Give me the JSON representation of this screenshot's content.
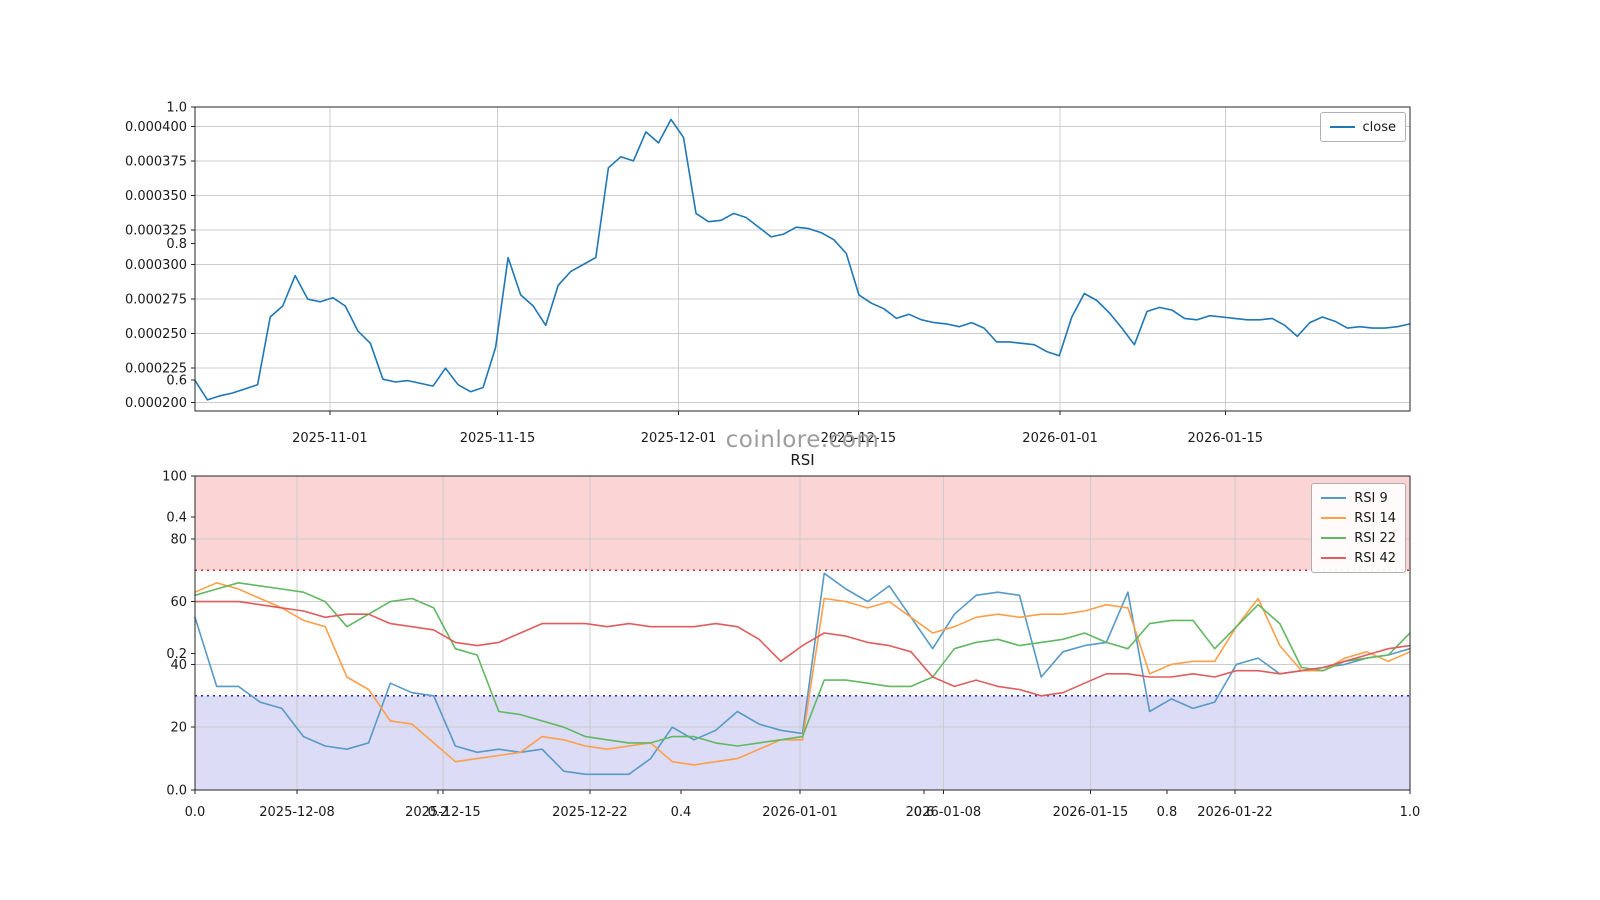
{
  "watermark": "coinlore.com",
  "overlay_axis": {
    "yticks": [
      "1.0",
      "0.8",
      "0.6",
      "0.4",
      "0.2",
      "0.0"
    ],
    "xticks": [
      "0.0",
      "0.2",
      "0.4",
      "0.6",
      "0.8",
      "1.0"
    ]
  },
  "chart_data": [
    {
      "type": "line",
      "title": "",
      "grid": true,
      "legend_position": "upper right",
      "ylim": [
        0.000194,
        0.000414
      ],
      "yticks": [
        {
          "v": 0.0002,
          "label": "0.000200"
        },
        {
          "v": 0.000225,
          "label": "0.000225"
        },
        {
          "v": 0.00025,
          "label": "0.000250"
        },
        {
          "v": 0.000275,
          "label": "0.000275"
        },
        {
          "v": 0.0003,
          "label": "0.000300"
        },
        {
          "v": 0.000325,
          "label": "0.000325"
        },
        {
          "v": 0.00035,
          "label": "0.000350"
        },
        {
          "v": 0.000375,
          "label": "0.000375"
        },
        {
          "v": 0.0004,
          "label": "0.000400"
        }
      ],
      "xticks": [
        {
          "f": 0.111,
          "label": "2025-11-01"
        },
        {
          "f": 0.249,
          "label": "2025-11-15"
        },
        {
          "f": 0.398,
          "label": "2025-12-01"
        },
        {
          "f": 0.546,
          "label": "2025-12-15"
        },
        {
          "f": 0.712,
          "label": "2026-01-01"
        },
        {
          "f": 0.848,
          "label": "2026-01-15"
        }
      ],
      "series": [
        {
          "name": "close",
          "color": "#1f77b4",
          "values": [
            0.000216,
            0.000202,
            0.000205,
            0.000207,
            0.00021,
            0.000213,
            0.000262,
            0.00027,
            0.000292,
            0.000275,
            0.000273,
            0.000276,
            0.00027,
            0.000252,
            0.000243,
            0.000217,
            0.000215,
            0.000216,
            0.000214,
            0.000212,
            0.000225,
            0.000213,
            0.000208,
            0.000211,
            0.00024,
            0.000305,
            0.000278,
            0.00027,
            0.000256,
            0.000285,
            0.000295,
            0.0003,
            0.000305,
            0.00037,
            0.000378,
            0.000375,
            0.000396,
            0.000388,
            0.000405,
            0.000392,
            0.000337,
            0.000331,
            0.000332,
            0.000337,
            0.000334,
            0.000327,
            0.00032,
            0.000322,
            0.000327,
            0.000326,
            0.000323,
            0.000318,
            0.000308,
            0.000278,
            0.000272,
            0.000268,
            0.000261,
            0.000264,
            0.00026,
            0.000258,
            0.000257,
            0.000255,
            0.000258,
            0.000254,
            0.000244,
            0.000244,
            0.000243,
            0.000242,
            0.000237,
            0.000234,
            0.000262,
            0.000279,
            0.000274,
            0.000265,
            0.000254,
            0.000242,
            0.000266,
            0.000269,
            0.000267,
            0.000261,
            0.00026,
            0.000263,
            0.000262,
            0.000261,
            0.00026,
            0.00026,
            0.000261,
            0.000256,
            0.000248,
            0.000258,
            0.000262,
            0.000259,
            0.000254,
            0.000255,
            0.000254,
            0.000254,
            0.000255,
            0.000257
          ]
        }
      ]
    },
    {
      "type": "line",
      "title": "RSI",
      "grid": true,
      "legend_position": "upper right",
      "ylim": [
        0,
        100
      ],
      "yticks": [
        {
          "v": 20,
          "label": "20"
        },
        {
          "v": 40,
          "label": "40"
        },
        {
          "v": 60,
          "label": "60"
        },
        {
          "v": 80,
          "label": "80"
        },
        {
          "v": 100,
          "label": "100"
        }
      ],
      "xticks": [
        {
          "f": 0.084,
          "label": "2025-12-08"
        },
        {
          "f": 0.204,
          "label": "2025-12-15"
        },
        {
          "f": 0.325,
          "label": "2025-12-22"
        },
        {
          "f": 0.498,
          "label": "2026-01-01"
        },
        {
          "f": 0.616,
          "label": "2026-01-08"
        },
        {
          "f": 0.737,
          "label": "2026-01-15"
        },
        {
          "f": 0.856,
          "label": "2026-01-22"
        }
      ],
      "bands": [
        {
          "name": "overbought-band",
          "from": 70,
          "to": 100,
          "color": "#fbd5d5"
        },
        {
          "name": "oversold-band",
          "from": 0,
          "to": 30,
          "color": "#dcdcf6"
        }
      ],
      "hlines": [
        {
          "y": 70,
          "color": "#d62728"
        },
        {
          "y": 30,
          "color": "#2323b0"
        }
      ],
      "series": [
        {
          "name": "RSI 9",
          "color": "#5799c7",
          "values": [
            55,
            33,
            33,
            28,
            26,
            17,
            14,
            13,
            15,
            34,
            31,
            30,
            14,
            12,
            13,
            12,
            13,
            6,
            5,
            5,
            5,
            10,
            20,
            16,
            19,
            25,
            21,
            19,
            18,
            69,
            64,
            60,
            65,
            55,
            45,
            56,
            62,
            63,
            62,
            36,
            44,
            46,
            47,
            63,
            25,
            29,
            26,
            28,
            40,
            42,
            37,
            38,
            39,
            40,
            42,
            43,
            45
          ]
        },
        {
          "name": "RSI 14",
          "color": "#ff9f4a",
          "values": [
            63,
            66,
            64,
            61,
            58,
            54,
            52,
            36,
            32,
            22,
            21,
            15,
            9,
            10,
            11,
            12,
            17,
            16,
            14,
            13,
            14,
            15,
            9,
            8,
            9,
            10,
            13,
            16,
            16,
            61,
            60,
            58,
            60,
            55,
            50,
            52,
            55,
            56,
            55,
            56,
            56,
            57,
            59,
            58,
            37,
            40,
            41,
            41,
            52,
            61,
            46,
            38,
            38,
            42,
            44,
            41,
            44
          ]
        },
        {
          "name": "RSI 22",
          "color": "#61b861",
          "values": [
            62,
            64,
            66,
            65,
            64,
            63,
            60,
            52,
            56,
            60,
            61,
            58,
            45,
            43,
            25,
            24,
            22,
            20,
            17,
            16,
            15,
            15,
            17,
            17,
            15,
            14,
            15,
            16,
            17,
            35,
            35,
            34,
            33,
            33,
            36,
            45,
            47,
            48,
            46,
            47,
            48,
            50,
            47,
            45,
            53,
            54,
            54,
            45,
            52,
            59,
            53,
            39,
            38,
            41,
            42,
            43,
            50
          ]
        },
        {
          "name": "RSI 42",
          "color": "#e05d5e",
          "values": [
            60,
            60,
            60,
            59,
            58,
            57,
            55,
            56,
            56,
            53,
            52,
            51,
            47,
            46,
            47,
            50,
            53,
            53,
            53,
            52,
            53,
            52,
            52,
            52,
            53,
            52,
            48,
            41,
            46,
            50,
            49,
            47,
            46,
            44,
            36,
            33,
            35,
            33,
            32,
            30,
            31,
            34,
            37,
            37,
            36,
            36,
            37,
            36,
            38,
            38,
            37,
            38,
            39,
            41,
            43,
            45,
            46
          ]
        }
      ]
    }
  ]
}
